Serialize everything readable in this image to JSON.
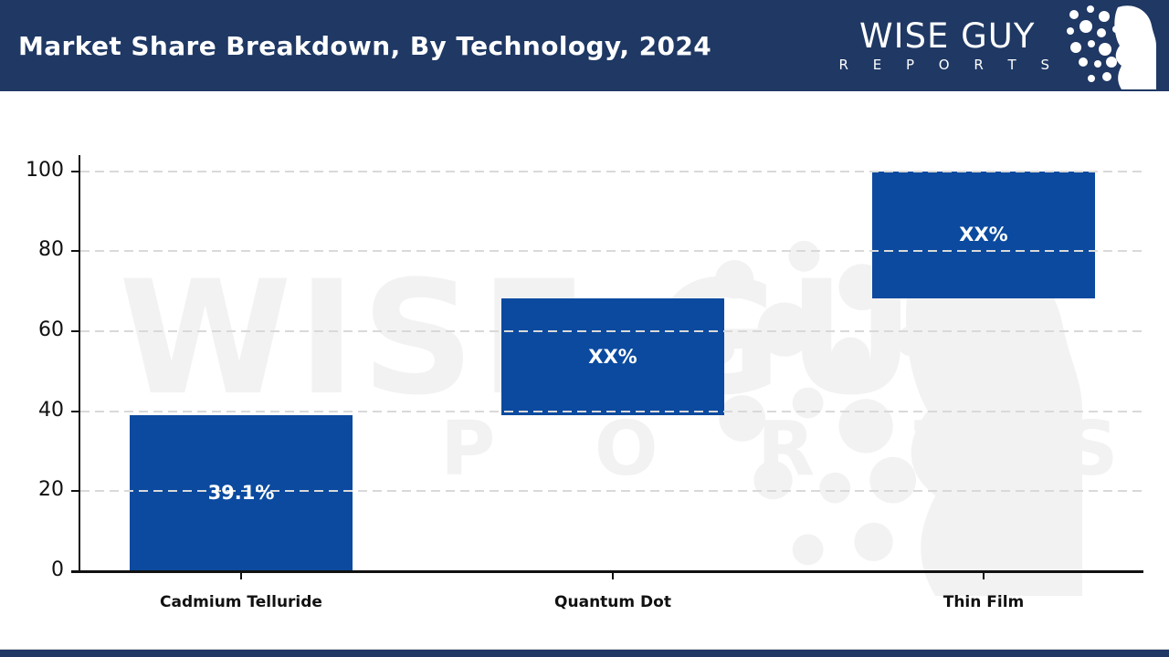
{
  "header": {
    "title": "Market Share Breakdown, By Technology, 2024",
    "bg_color": "#1f3864",
    "logo": {
      "line1": "WISE GUY",
      "line2": "R E P O R T S"
    }
  },
  "watermark": {
    "line1": "WISE GUY",
    "line2": "R E P O R T S"
  },
  "chart_data": {
    "type": "bar",
    "subtype": "floating-segment-bars",
    "title": "Market Share Breakdown, By Technology, 2024",
    "categories": [
      "Cadmium Telluride",
      "Quantum Dot",
      "Thin Film"
    ],
    "segments": [
      {
        "category": "Cadmium Telluride",
        "start": 0,
        "end": 39.1,
        "label": "39.1%"
      },
      {
        "category": "Quantum Dot",
        "start": 39.1,
        "end": 68.3,
        "label": "XX%"
      },
      {
        "category": "Thin Film",
        "start": 68.3,
        "end": 100,
        "label": "XX%"
      }
    ],
    "yticks": [
      0,
      20,
      40,
      60,
      80,
      100
    ],
    "ylim": [
      0,
      104
    ],
    "xlabel": "",
    "ylabel": "",
    "bar_color": "#0b4a9f",
    "grid": "dashed-horizontal",
    "gridline_color": "#d9d9d9",
    "legend": "none"
  },
  "colors": {
    "accent": "#1f3864",
    "bar": "#0b4a9f",
    "watermark": "#f2f2f3"
  }
}
